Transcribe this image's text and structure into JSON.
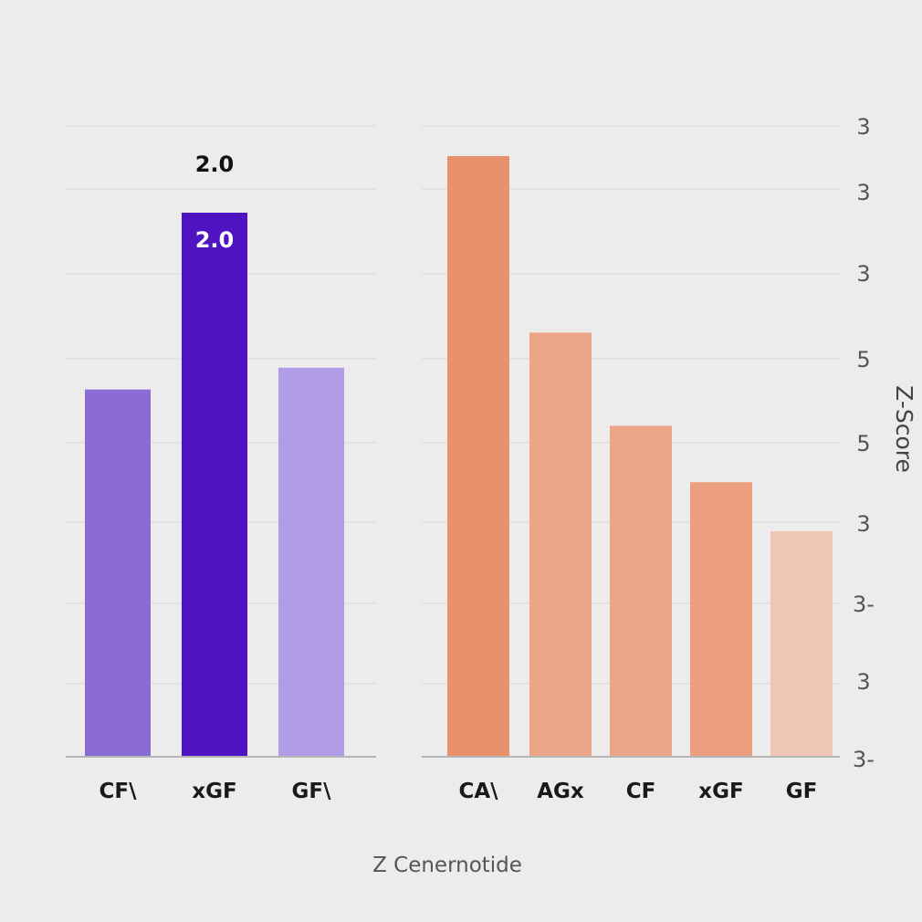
{
  "chart_data": [
    {
      "type": "bar",
      "categories": [
        "CF\\",
        "xGF",
        "GF\\"
      ],
      "values": [
        1.35,
        2.0,
        1.43
      ],
      "colors": [
        "#8b6cd6",
        "#4f13c2",
        "#b19ce8"
      ],
      "bar_labels": [
        {
          "index": 1,
          "value_text": "2.0",
          "inside_text": "2.0"
        }
      ],
      "ylim": [
        0,
        2.6
      ],
      "grid": true
    },
    {
      "type": "bar",
      "categories": [
        "CA\\",
        "AGx",
        "CF",
        "xGF",
        "GF"
      ],
      "values": [
        2.45,
        1.73,
        1.35,
        1.12,
        0.92
      ],
      "colors": [
        "#e8916d",
        "#eca586",
        "#eca587",
        "#ec9f7f",
        "#efc6b5"
      ],
      "ylim": [
        -0.8,
        2.7
      ],
      "grid": true,
      "y_tick_labels": [
        "3",
        "3",
        "3",
        "5",
        "5",
        "3",
        "3-",
        "3",
        "3-"
      ],
      "ylabel": "Z-Score"
    }
  ],
  "xlabel": "Z Cenernotide"
}
